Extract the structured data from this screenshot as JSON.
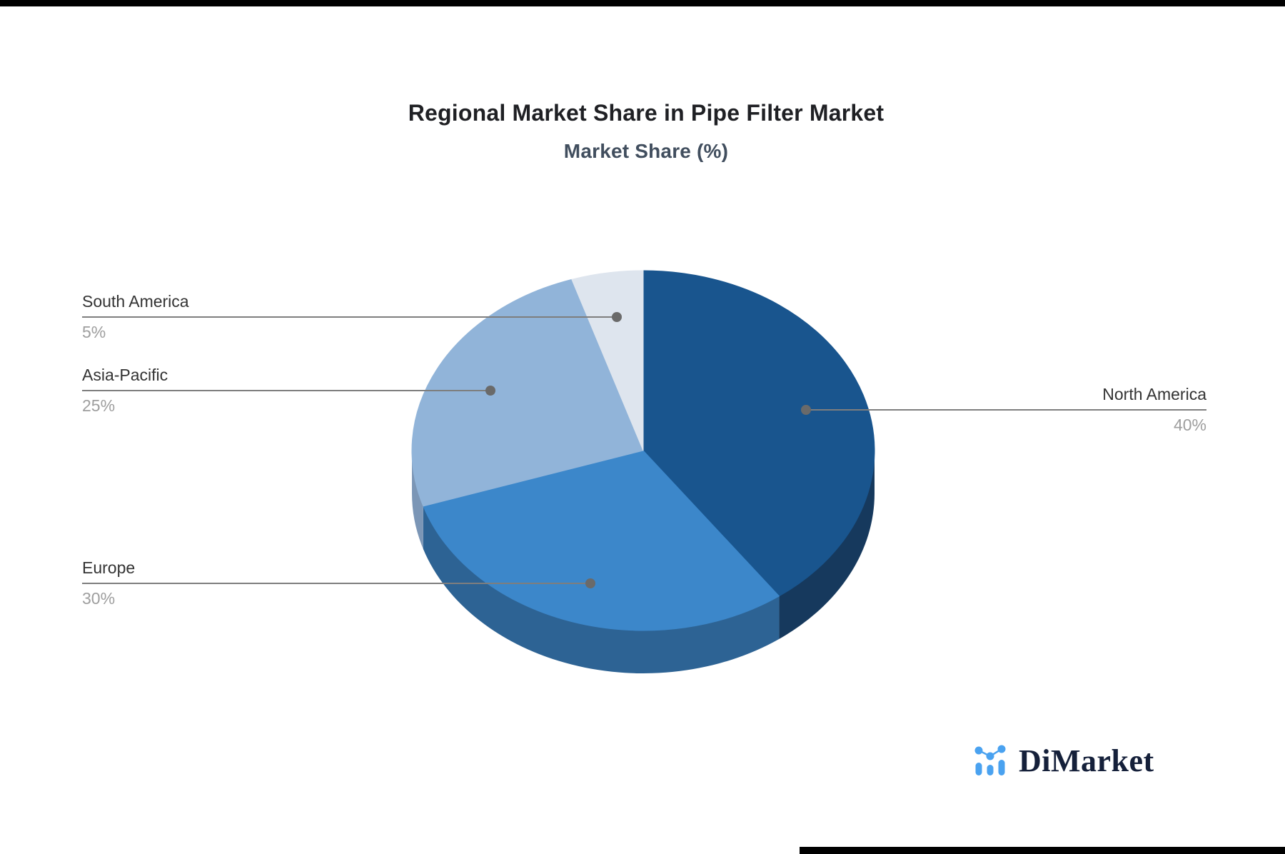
{
  "title": "Regional Market Share in Pipe Filter Market",
  "subtitle": "Market Share (%)",
  "chart_data": {
    "type": "pie",
    "style": "3d-depth",
    "start_angle_deg": 0,
    "direction": "clockwise",
    "legend_position": "none",
    "categories": [
      "North America",
      "Europe",
      "Asia-Pacific",
      "South America"
    ],
    "values": [
      40,
      30,
      25,
      5
    ],
    "display_values": [
      "40%",
      "30%",
      "25%",
      "5%"
    ],
    "colors": [
      "#19558e",
      "#3c87ca",
      "#91b4d9",
      "#dee5ee"
    ],
    "side_colors": [
      "#16395d",
      "#2d6394",
      "#7b96b6",
      "#b8c4d6"
    ],
    "leader_line_color": "#7e7e7e",
    "label_color": "#333333",
    "value_color": "#9e9e9e",
    "title_color": "#1f2024",
    "subtitle_color": "#414e5e"
  },
  "branding": {
    "logo_text": "DiMarket",
    "logo_icon": "bar-line-chart-icon",
    "logo_text_color": "#15203a",
    "logo_accent_color": "#4aa2f0"
  }
}
